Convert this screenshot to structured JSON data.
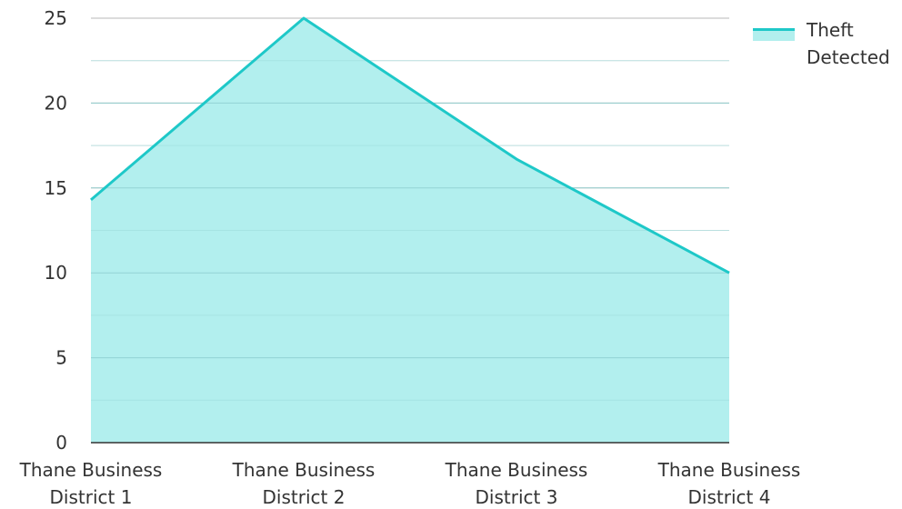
{
  "chart_data": {
    "type": "area",
    "title": "",
    "xlabel": "",
    "ylabel": "",
    "categories": [
      [
        "Thane Business",
        "District 1"
      ],
      [
        "Thane Business",
        "District 2"
      ],
      [
        "Thane Business",
        "District 3"
      ],
      [
        "Thane Business",
        "District 4"
      ]
    ],
    "series": [
      {
        "name": "Theft Detected",
        "name_lines": [
          "Theft",
          "Detected"
        ],
        "values": [
          14.3,
          25,
          16.7,
          10
        ],
        "line_color": "#1ec8c8",
        "fill_color": "#b2efee"
      }
    ],
    "ylim": [
      0,
      25
    ],
    "yticks": [
      0,
      5,
      10,
      15,
      20,
      25
    ],
    "ytick_labels": [
      "0",
      "5",
      "10",
      "15",
      "20",
      "25"
    ],
    "grid": true,
    "legend_position": "top-right"
  }
}
